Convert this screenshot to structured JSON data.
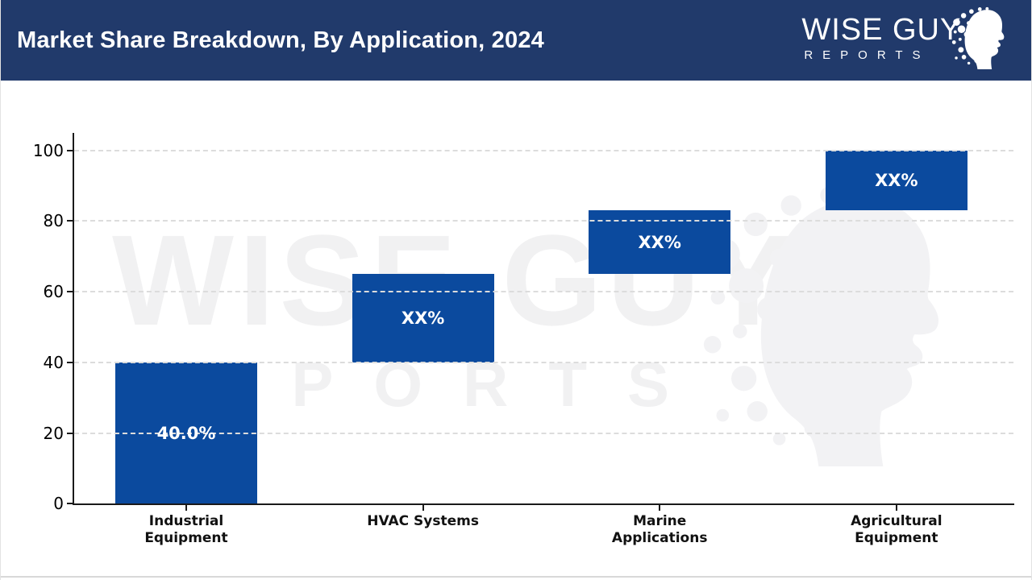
{
  "header": {
    "title": "Market Share Breakdown, By Application, 2024",
    "background_color": "#213a6b",
    "logo": {
      "line1": "WISE GUY",
      "line2": "REPORTS"
    }
  },
  "watermark": {
    "line1": "WISE GUY",
    "line2": "REPORTS"
  },
  "chart_data": {
    "type": "bar",
    "subtype": "waterfall",
    "title": "Market Share Breakdown, By Application, 2024",
    "categories": [
      "Industrial Equipment",
      "HVAC Systems",
      "Marine Applications",
      "Agricultural Equipment"
    ],
    "category_label_lines": [
      [
        "Industrial",
        "Equipment"
      ],
      [
        "HVAC Systems"
      ],
      [
        "Marine",
        "Applications"
      ],
      [
        "Agricultural",
        "Equipment"
      ]
    ],
    "segments": [
      {
        "category": "Industrial Equipment",
        "start": 0,
        "end": 40,
        "label": "40.0%"
      },
      {
        "category": "HVAC Systems",
        "start": 40,
        "end": 65,
        "label": "XX%"
      },
      {
        "category": "Marine Applications",
        "start": 65,
        "end": 83,
        "label": "XX%"
      },
      {
        "category": "Agricultural Equipment",
        "start": 83,
        "end": 100,
        "label": "XX%"
      }
    ],
    "ylim": [
      0,
      100
    ],
    "yticks": [
      0,
      20,
      40,
      60,
      80,
      100
    ],
    "xlabel": "",
    "ylabel": "",
    "grid": "horizontal-dashed",
    "legend": "none",
    "bar_color": "#0b4a9e",
    "bar_label_color": "#ffffff"
  }
}
